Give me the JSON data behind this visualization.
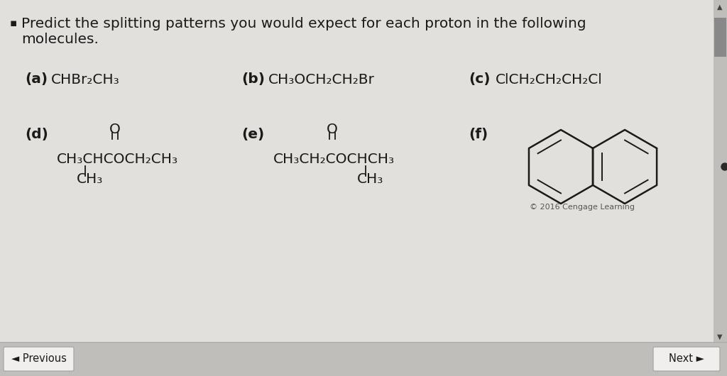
{
  "bg_color": "#cbcbcb",
  "content_bg": "#e2e0dd",
  "title_text_line1": "Predict the splitting patterns you would expect for each proton in the following",
  "title_text_line2": "molecules.",
  "label_a": "(a)",
  "mol_a": "CHBr₂CH₃",
  "label_b": "(b)",
  "mol_b": "CH₃OCH₂CH₂Br",
  "label_c": "(c)",
  "mol_c": "ClCH₂CH₂CH₂Cl",
  "label_d": "(d)",
  "mol_d_main": "CH₃CHCOCH₂CH₃",
  "mol_d_sub": "CH₃",
  "label_e": "(e)",
  "mol_e_main": "CH₃CH₂COCHCH₃",
  "mol_e_sub": "CH₃",
  "label_f": "(f)",
  "copyright": "© 2016 Cengage Learning",
  "prev_btn": "◄ Previous",
  "next_btn": "Next ►",
  "font_color": "#1a1a1a",
  "btn_bg": "#f0efed",
  "scroll_bg": "#c0bebb",
  "bottom_bar_color": "#c0bebb",
  "scroll_thumb_color": "#888888"
}
